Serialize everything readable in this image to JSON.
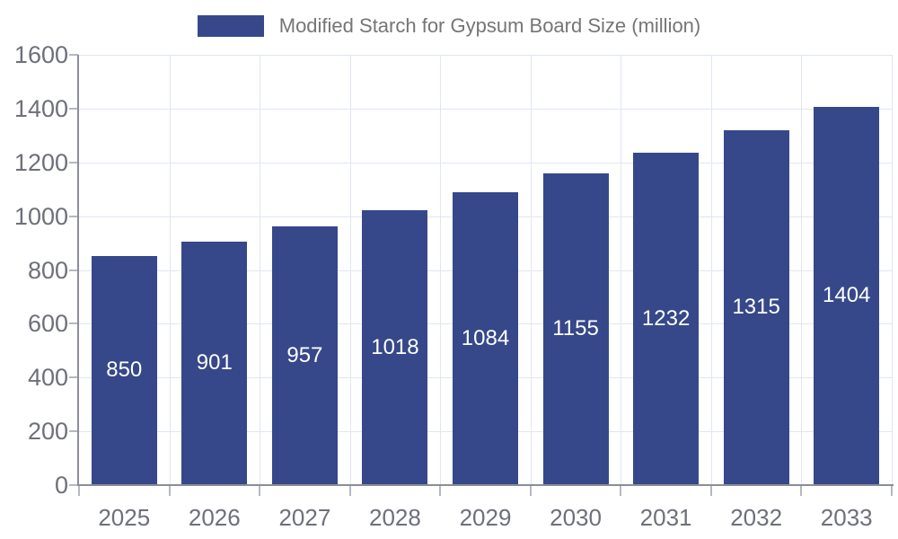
{
  "legend": {
    "label": "Modified Starch for Gypsum Board Size (million)"
  },
  "chart_data": {
    "type": "bar",
    "title": "Modified Starch for Gypsum Board Size (million)",
    "categories": [
      "2025",
      "2026",
      "2027",
      "2028",
      "2029",
      "2030",
      "2031",
      "2032",
      "2033"
    ],
    "values": [
      850,
      901,
      957,
      1018,
      1084,
      1155,
      1232,
      1315,
      1404
    ],
    "xlabel": "",
    "ylabel": "",
    "ylim": [
      0,
      1600
    ],
    "ytick_step": 200,
    "ytick_labels": [
      "0",
      "200",
      "400",
      "600",
      "800",
      "1000",
      "1200",
      "1400",
      "1600"
    ],
    "grid": true,
    "legend_position": "top-center",
    "value_label_position": "inside-center",
    "colors": {
      "bar": "#36488A",
      "value_label": "#FFFFFF",
      "gridline": "#E0E6F1",
      "axis_line": "#8A8E96",
      "tick_mark": "#B4B8C0",
      "tick_label": "#6E7079",
      "legend_text": "#757575",
      "background": "#FFFFFF"
    }
  }
}
